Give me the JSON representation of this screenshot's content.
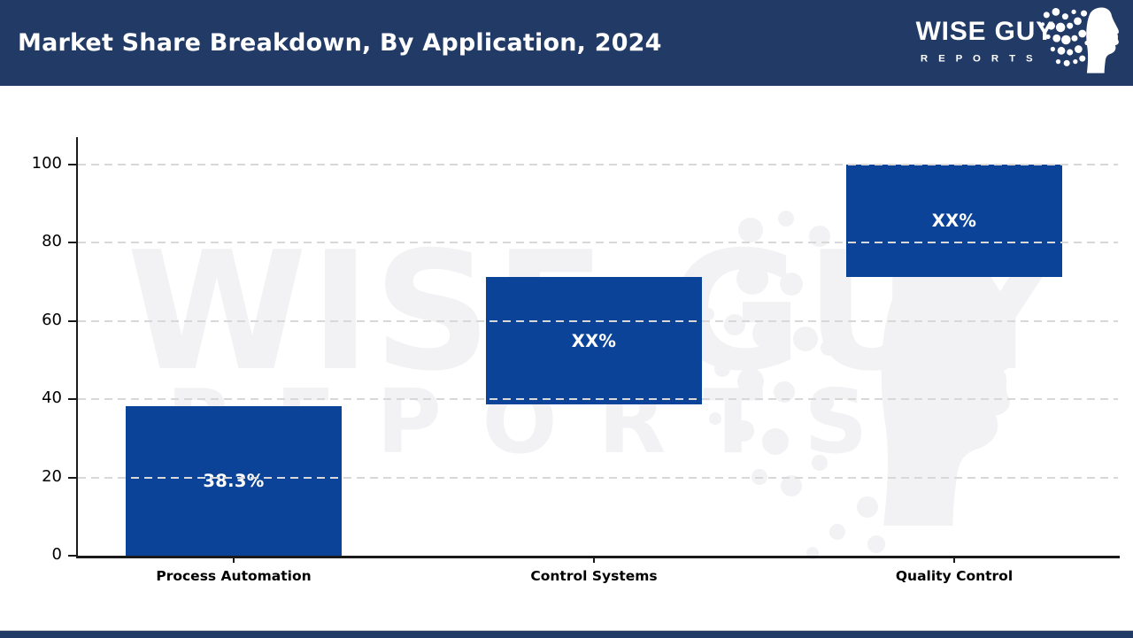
{
  "header": {
    "title": "Market Share Breakdown, By Application, 2024",
    "logo": {
      "brand": "WISE GUY",
      "sub": "R E P O R T S"
    }
  },
  "watermark": {
    "line1": "WISE GUY",
    "line2": "REPORTS"
  },
  "chart_data": {
    "type": "bar",
    "subtype": "floating-segment-column",
    "title": "Market Share Breakdown, By Application, 2024",
    "categories": [
      "Process Automation",
      "Control Systems",
      "Quality Control"
    ],
    "segments": [
      {
        "category": "Process Automation",
        "start": 0,
        "end": 38.3,
        "label": "38.3%"
      },
      {
        "category": "Control Systems",
        "start": 38.6,
        "end": 71.3,
        "label": "XX%"
      },
      {
        "category": "Quality Control",
        "start": 71.3,
        "end": 100,
        "label": "XX%"
      }
    ],
    "xlabel": "",
    "ylabel": "",
    "yticks": [
      0,
      20,
      40,
      60,
      80,
      100
    ],
    "ylim": [
      0,
      107
    ],
    "grid": "horizontal-dashed",
    "legend": "none",
    "bar_color": "#0b4399",
    "value_label_color": "#ffffff"
  },
  "colors": {
    "header_bg": "#213a66",
    "footer_bg": "#213a66",
    "bar": "#0b4399",
    "grid": "#d8d8d8",
    "axis": "#1a1a1a",
    "text": "#000000",
    "title_text": "#ffffff",
    "watermark": "#f2f2f4"
  }
}
